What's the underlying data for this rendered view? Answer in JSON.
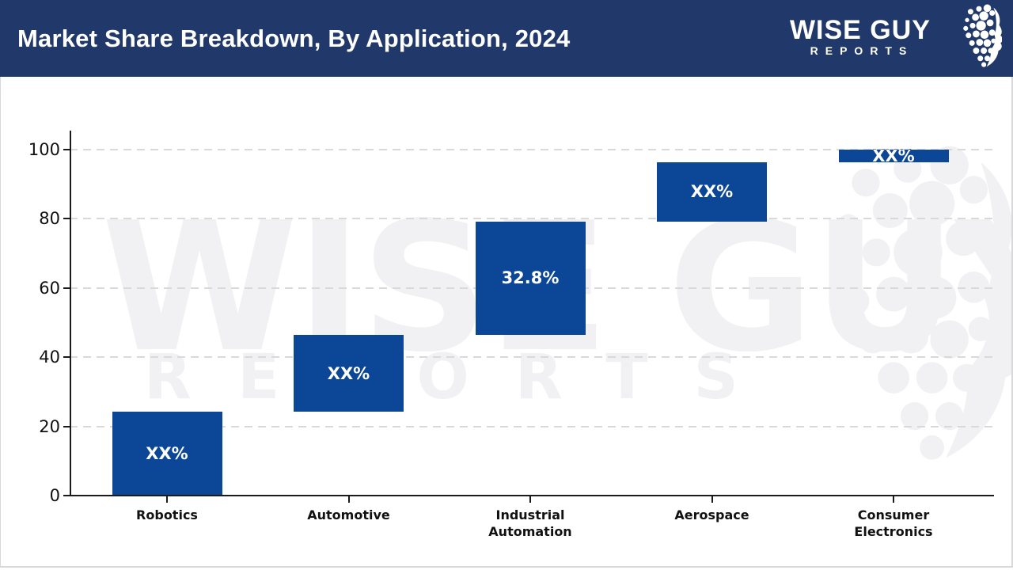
{
  "header": {
    "title": "Market Share Breakdown, By Application, 2024",
    "bg_color": "#21386B",
    "logo": {
      "brand": "WISE GUY",
      "sub": "REPORTS",
      "icon": "dotted-head-profile-icon"
    }
  },
  "watermark": {
    "brand": "WISE GUY",
    "sub": "REPORTS"
  },
  "chart_data": {
    "type": "bar",
    "variant": "waterfall",
    "title": "Market Share Breakdown, By Application, 2024",
    "categories": [
      "Robotics",
      "Automotive",
      "Industrial Automation",
      "Aerospace",
      "Consumer Electronics"
    ],
    "category_display": [
      "Robotics",
      "Automotive",
      "Industrial\nAutomation",
      "Aerospace",
      "Consumer\nElectronics"
    ],
    "segments": [
      {
        "category": "Robotics",
        "start": 0,
        "end": 24.2,
        "label": "XX%"
      },
      {
        "category": "Automotive",
        "start": 24.2,
        "end": 46.4,
        "label": "XX%"
      },
      {
        "category": "Industrial Automation",
        "start": 46.4,
        "end": 79.2,
        "label": "32.8%"
      },
      {
        "category": "Aerospace",
        "start": 79.2,
        "end": 96.2,
        "label": "XX%"
      },
      {
        "category": "Consumer Electronics",
        "start": 96.2,
        "end": 100,
        "label": "XX%"
      }
    ],
    "ylim": [
      0,
      100
    ],
    "yticks": [
      0,
      20,
      40,
      60,
      80,
      100
    ],
    "grid": "horizontal-dashed",
    "legend": "none",
    "bar_color": "#0B4796",
    "bar_label_color": "#FFFFFF",
    "axis_color": "#1A1A1A"
  }
}
